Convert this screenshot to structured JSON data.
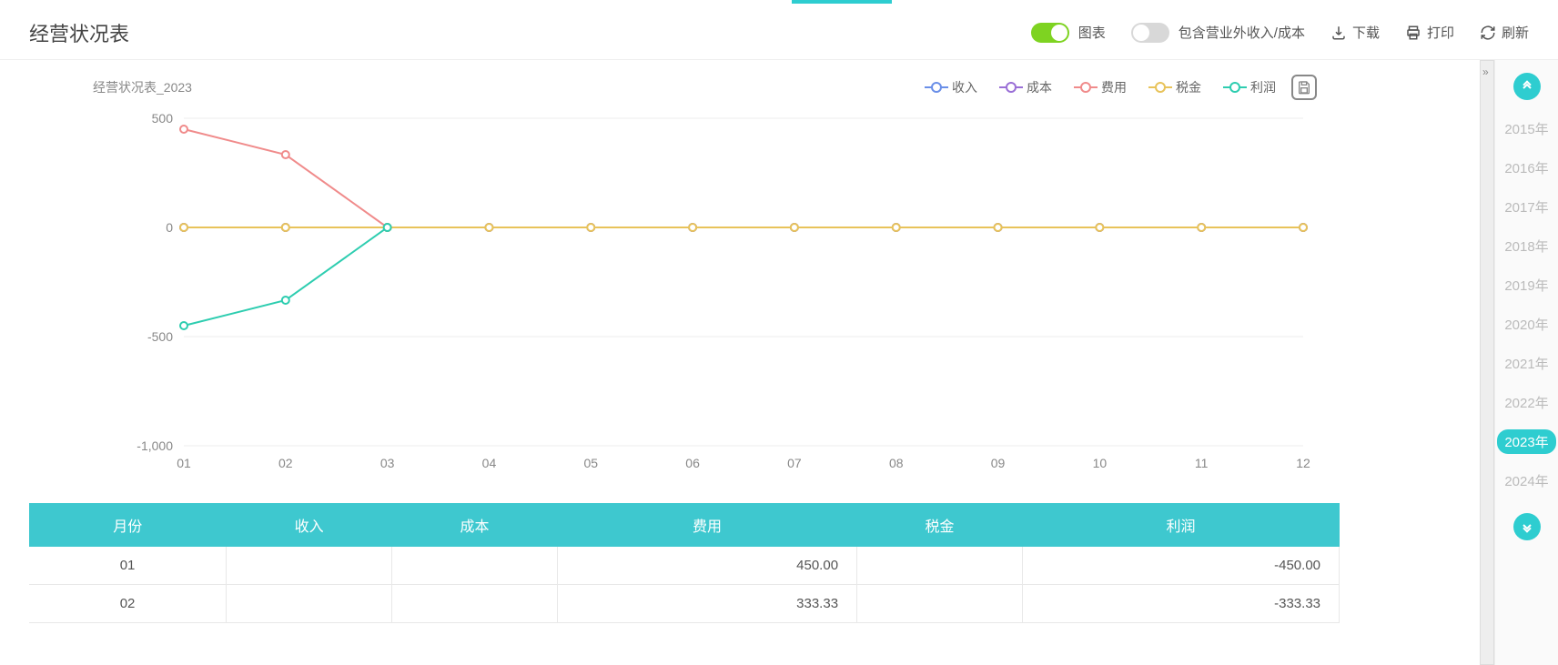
{
  "header": {
    "title": "经营状况表",
    "toggle_chart_label": "图表",
    "toggle_chart_on": true,
    "toggle_extra_label": "包含营业外收入/成本",
    "toggle_extra_on": false,
    "download_label": "下载",
    "print_label": "打印",
    "refresh_label": "刷新"
  },
  "chart": {
    "title": "经营状况表_2023",
    "type": "line",
    "categories": [
      "01",
      "02",
      "03",
      "04",
      "05",
      "06",
      "07",
      "08",
      "09",
      "10",
      "11",
      "12"
    ],
    "ylim": [
      -1000,
      500
    ],
    "ytick_step": 500,
    "yticks": [
      "-1,000",
      "-500",
      "0",
      "500"
    ],
    "grid_color": "#eeeeee",
    "background_color": "#ffffff",
    "marker_radius": 4,
    "line_width": 2,
    "label_fontsize": 14,
    "label_color": "#888888",
    "series": [
      {
        "name": "收入",
        "color": "#6a8fe8",
        "values": [
          0,
          0,
          0,
          0,
          0,
          0,
          0,
          0,
          0,
          0,
          0,
          0
        ]
      },
      {
        "name": "成本",
        "color": "#9a6fd6",
        "values": [
          0,
          0,
          0,
          0,
          0,
          0,
          0,
          0,
          0,
          0,
          0,
          0
        ]
      },
      {
        "name": "费用",
        "color": "#f08b8b",
        "values": [
          450,
          333.33,
          0,
          null,
          null,
          null,
          null,
          null,
          null,
          null,
          null,
          null
        ]
      },
      {
        "name": "税金",
        "color": "#e8c35a",
        "values": [
          0,
          0,
          0,
          0,
          0,
          0,
          0,
          0,
          0,
          0,
          0,
          0
        ]
      },
      {
        "name": "利润",
        "color": "#2ecdb0",
        "values": [
          -450,
          -333.33,
          0,
          null,
          null,
          null,
          null,
          null,
          null,
          null,
          null,
          null
        ]
      }
    ]
  },
  "table": {
    "columns": [
      "月份",
      "收入",
      "成本",
      "费用",
      "税金",
      "利润"
    ],
    "col_align": [
      "center",
      "right",
      "right",
      "right",
      "right",
      "right"
    ],
    "header_bg": "#3ec8cf",
    "header_fg": "#ffffff",
    "rows": [
      [
        "01",
        "",
        "",
        "450.00",
        "",
        "-450.00"
      ],
      [
        "02",
        "",
        "",
        "333.33",
        "",
        "-333.33"
      ]
    ]
  },
  "sidebar": {
    "years": [
      "2015年",
      "2016年",
      "2017年",
      "2018年",
      "2019年",
      "2020年",
      "2021年",
      "2022年",
      "2023年",
      "2024年"
    ],
    "active_index": 8,
    "accent": "#2ecdd0",
    "inactive_color": "#bbbbbb"
  }
}
